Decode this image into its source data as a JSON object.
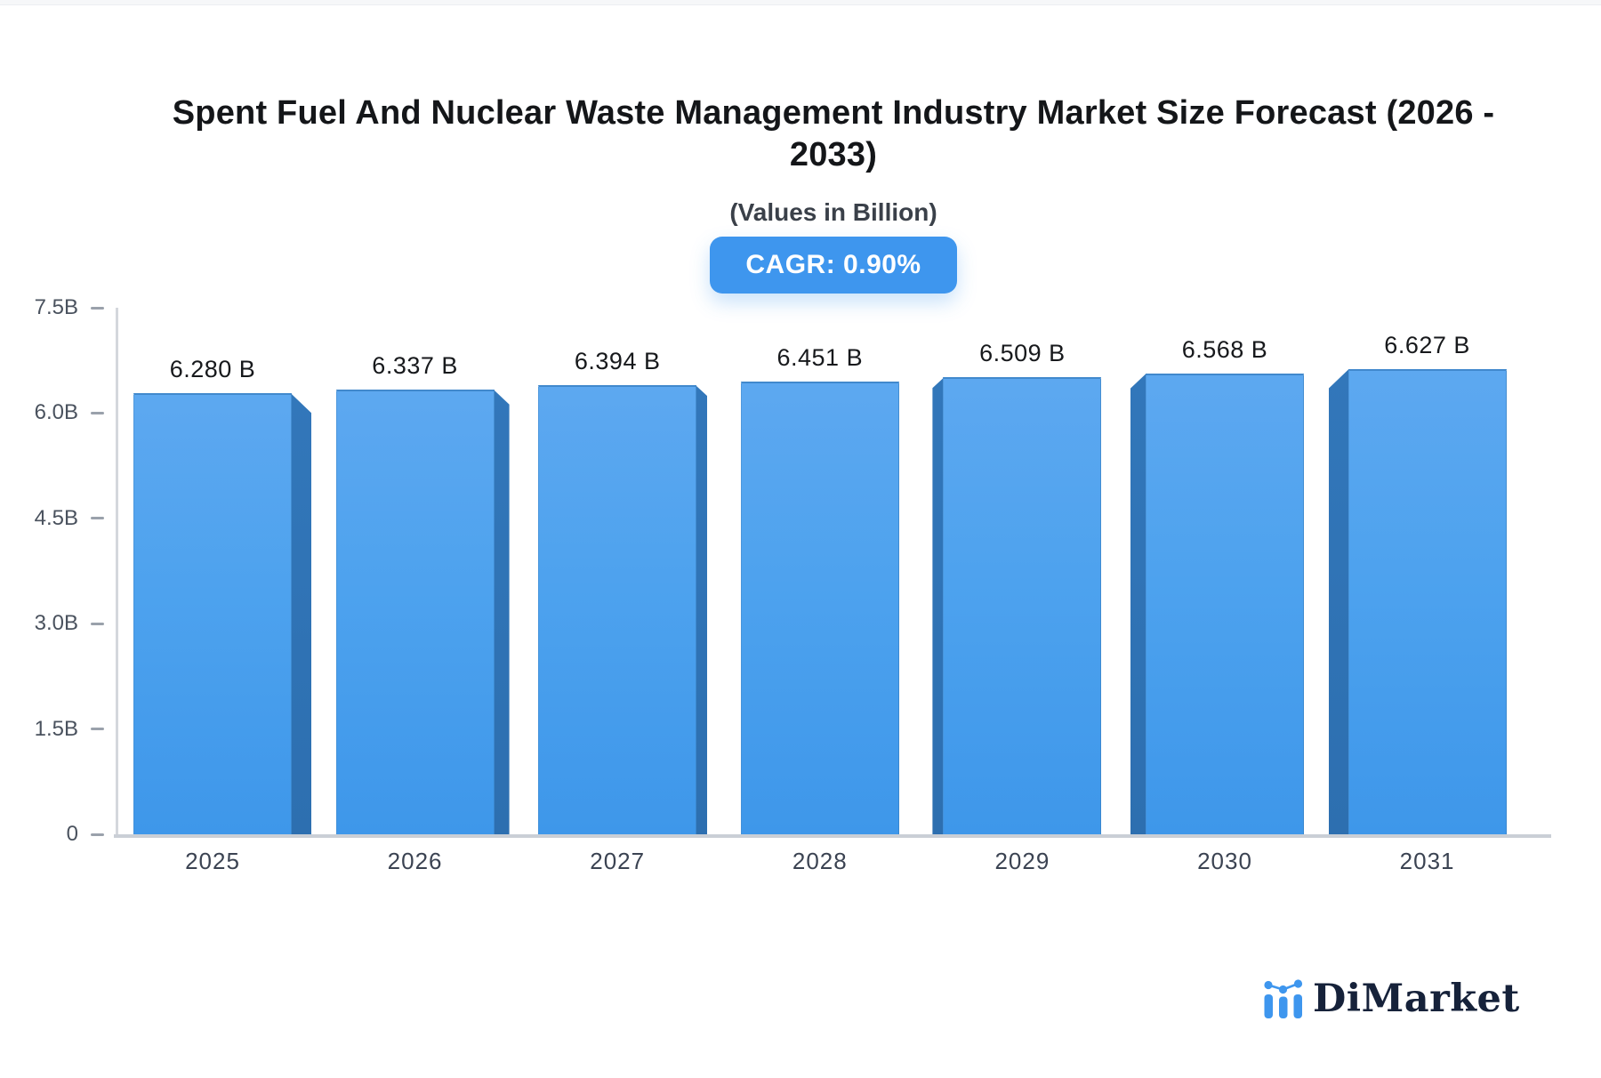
{
  "header": {
    "title_line1": "Spent Fuel And Nuclear Waste Management Industry Market Size Forecast (2026 -",
    "title_line2": "2033)",
    "subtitle": "(Values in Billion)",
    "cagr_badge": "CAGR: 0.90%"
  },
  "chart_data": {
    "type": "bar",
    "title": "Spent Fuel And Nuclear Waste Management Industry Market Size Forecast (2026 - 2033)",
    "subtitle": "(Values in Billion)",
    "cagr": "0.90%",
    "categories": [
      "2025",
      "2026",
      "2027",
      "2028",
      "2029",
      "2030",
      "2031"
    ],
    "values": [
      6.28,
      6.337,
      6.394,
      6.451,
      6.509,
      6.568,
      6.627
    ],
    "value_labels": [
      "6.280 B",
      "6.337 B",
      "6.394 B",
      "6.451 B",
      "6.509 B",
      "6.568 B",
      "6.627 B"
    ],
    "xlabel": "",
    "ylabel": "",
    "ylim": [
      0,
      7.5
    ],
    "yticks": [
      {
        "value": 0,
        "label": "0"
      },
      {
        "value": 1.5,
        "label": "1.5B"
      },
      {
        "value": 3.0,
        "label": "3.0B"
      },
      {
        "value": 4.5,
        "label": "4.5B"
      },
      {
        "value": 6.0,
        "label": "6.0B"
      },
      {
        "value": 7.5,
        "label": "7.5B"
      }
    ],
    "grid": false,
    "legend": null,
    "bar_color": "#4aa0ee",
    "bar_side_color": "#2e72b5"
  },
  "logo": {
    "text": "DiMarket",
    "accent_color": "#3e96ee"
  },
  "colors": {
    "accent": "#3e96ee",
    "axis_line": "#cdd1d7",
    "tick": "#9aa1ab",
    "title_text": "#141619",
    "axis_text": "#4a525e"
  }
}
